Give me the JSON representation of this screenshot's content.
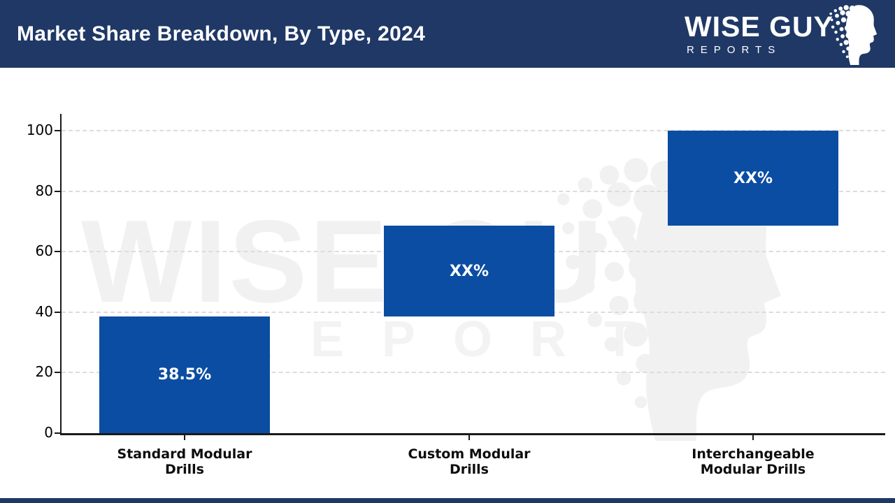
{
  "header": {
    "title": "Market Share Breakdown, By Type, 2024",
    "logo": {
      "name": "WISE GUY",
      "sub": "REPORTS"
    }
  },
  "watermark": {
    "line1": "WISE GUY",
    "line2": "REPORTS"
  },
  "footer": {
    "present": true
  },
  "colors": {
    "header_bg": "#1f3866",
    "footer_bg": "#1f3866",
    "bar": "#0b4da2",
    "bar_label": "#ffffff",
    "grid": "#dcdcdc",
    "axis": "#1a1a1a",
    "watermark": "#f1f1f1",
    "title_text": "#ffffff"
  },
  "chart_data": {
    "type": "bar",
    "subtype": "floating-waterfall",
    "title": "Market Share Breakdown, By Type, 2024",
    "xlabel": "",
    "ylabel": "",
    "ylim": [
      0,
      105
    ],
    "yticks": [
      0,
      20,
      40,
      60,
      80,
      100
    ],
    "grid": "horizontal-dashed",
    "legend": "none",
    "categories": [
      "Standard Modular Drills",
      "Custom Modular Drills",
      "Interchangeable Modular Drills"
    ],
    "categories_wrapped": [
      [
        "Standard Modular",
        "Drills"
      ],
      [
        "Custom Modular",
        "Drills"
      ],
      [
        "Interchangeable",
        "Modular Drills"
      ]
    ],
    "bars": [
      {
        "category": "Standard Modular Drills",
        "start": 0,
        "end": 38.5,
        "label": "38.5%"
      },
      {
        "category": "Custom Modular Drills",
        "start": 38.5,
        "end": 68.5,
        "label": "XX%"
      },
      {
        "category": "Interchangeable Modular Drills",
        "start": 68.5,
        "end": 100,
        "label": "XX%"
      }
    ]
  }
}
